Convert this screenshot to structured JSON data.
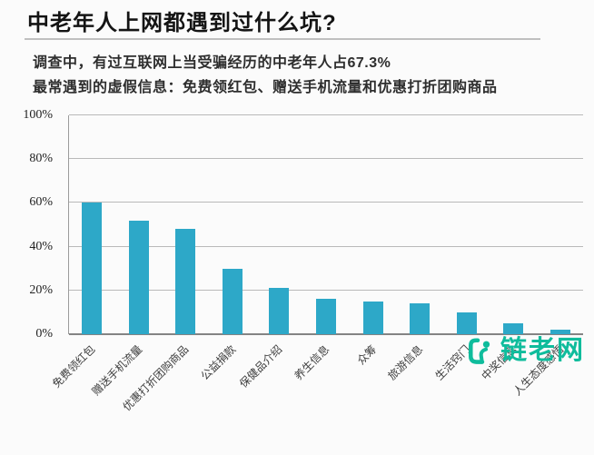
{
  "page": {
    "title": "中老年人上网都遇到过什么坑?",
    "subtitle_line1": "调查中，有过互联网上当受骗经历的中老年人占67.3%",
    "subtitle_line2": "最常遇到的虚假信息：免费领红包、赠送手机流量和优惠打折团购商品"
  },
  "chart_data": {
    "type": "bar",
    "title": "中老年人上网都遇到过什么坑?",
    "categories": [
      "免费领红包",
      "赠送手机流量",
      "优惠打折团购商品",
      "公益捐款",
      "保健品介绍",
      "养生信息",
      "众筹",
      "旅游信息",
      "生活窍门",
      "中奖信息",
      "人生态度感悟"
    ],
    "values": [
      60,
      52,
      48,
      30,
      21,
      16,
      15,
      14,
      10,
      5,
      2
    ],
    "value_suffix": "%",
    "xlabel": "",
    "ylabel": "",
    "ylim": [
      0,
      100
    ],
    "y_ticks": [
      {
        "label": "0%",
        "value": 0
      },
      {
        "label": "20%",
        "value": 20
      },
      {
        "label": "40%",
        "value": 40
      },
      {
        "label": "60%",
        "value": 60
      },
      {
        "label": "80%",
        "value": 80
      },
      {
        "label": "100%",
        "value": 100
      }
    ],
    "grid": true,
    "legend": false,
    "bar_color": "#2da8c8",
    "gridline_color": "#b9b9b9"
  },
  "watermark": {
    "text": "链老网",
    "color": "#0fbc9c",
    "logo": "elderly-care-logo"
  }
}
